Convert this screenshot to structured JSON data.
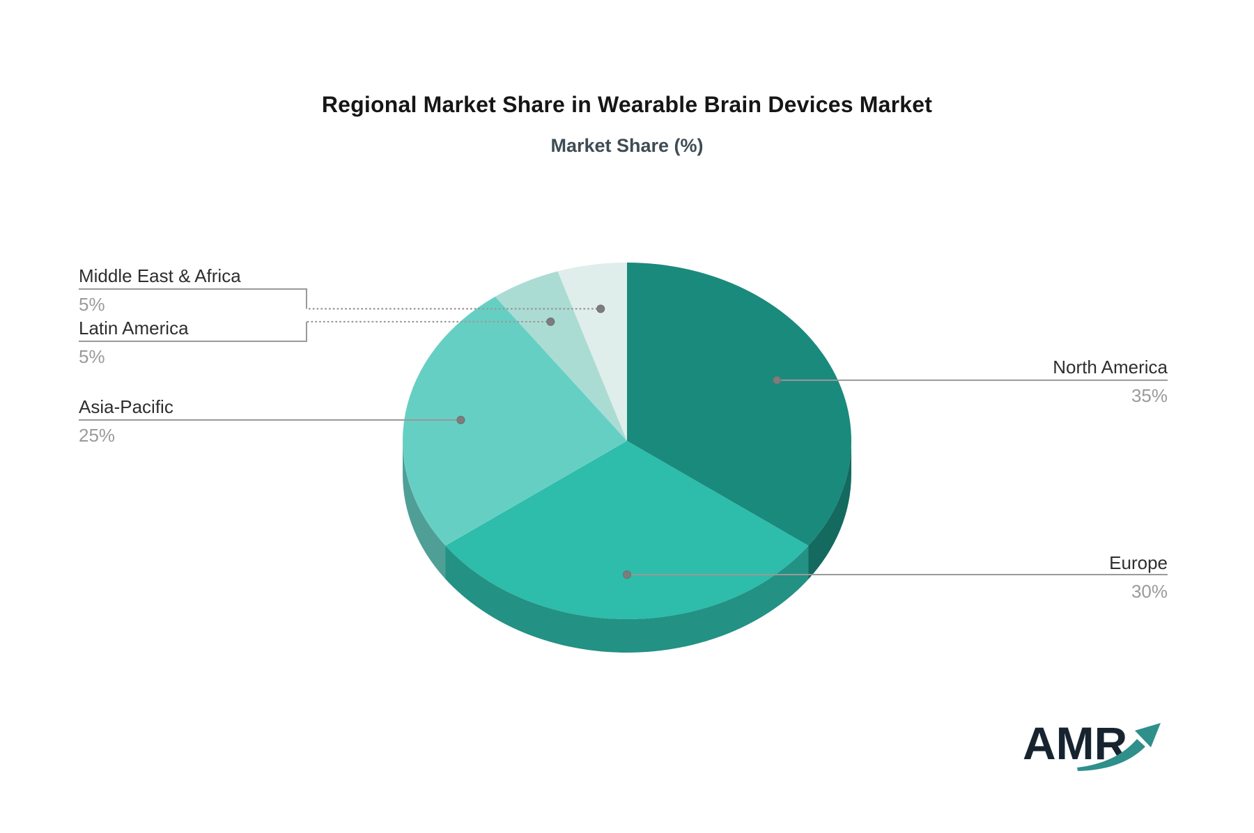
{
  "header": {
    "title": "Regional Market Share in Wearable Brain Devices Market",
    "subtitle": "Market Share (%)"
  },
  "chart_data": {
    "type": "pie",
    "is_3d": true,
    "title": "Regional Market Share in Wearable Brain Devices Market",
    "subtitle": "Market Share (%)",
    "unit": "%",
    "start_angle_deg": 0,
    "direction": "clockwise",
    "legend_position": "callout-labels",
    "slices": [
      {
        "label": "North America",
        "value": 35,
        "pct_label": "35%",
        "color": "#1A8A7C"
      },
      {
        "label": "Europe",
        "value": 30,
        "pct_label": "30%",
        "color": "#2EBCAB"
      },
      {
        "label": "Asia-Pacific",
        "value": 25,
        "pct_label": "25%",
        "color": "#66CFC4"
      },
      {
        "label": "Latin America",
        "value": 5,
        "pct_label": "5%",
        "color": "#ABDCD4"
      },
      {
        "label": "Middle East & Africa",
        "value": 5,
        "pct_label": "5%",
        "color": "#DFEEEA"
      }
    ]
  },
  "style": {
    "leader_line_color": "#999999",
    "leader_dot_color": "#7d7d7d",
    "label_text_color": "#2e2e2e",
    "pct_text_color": "#9a9a9a"
  },
  "logo": {
    "text": "AMR",
    "text_color": "#172430",
    "arrow_color": "#2F8F8B"
  }
}
